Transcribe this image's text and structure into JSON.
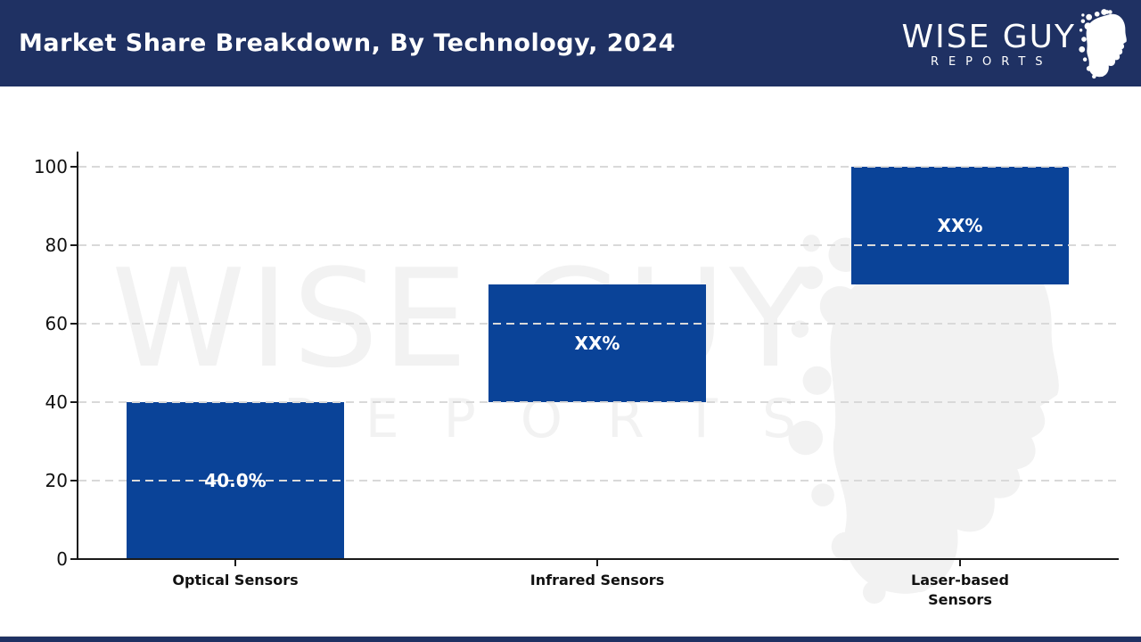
{
  "header": {
    "title": "Market Share Breakdown, By Technology, 2024",
    "logo": {
      "brand": "WISE GUY",
      "sub": "REPORTS"
    }
  },
  "watermark": {
    "brand": "WISE GUY",
    "sub": "REPORTS"
  },
  "chart_data": {
    "type": "bar",
    "subtype": "floating-breakdown-bars",
    "title": "Market Share Breakdown, By Technology, 2024",
    "categories": [
      "Optical Sensors",
      "Infrared Sensors",
      "Laser-based Sensors"
    ],
    "tick_labels": [
      "Optical Sensors",
      "Infrared Sensors",
      "Laser-based\nSensors"
    ],
    "series": [
      {
        "name": "Market Share",
        "segments": [
          {
            "category": "Optical Sensors",
            "start": 0,
            "end": 40,
            "value_label": "40.0%"
          },
          {
            "category": "Infrared Sensors",
            "start": 40,
            "end": 70,
            "value_label": "XX%"
          },
          {
            "category": "Laser-based Sensors",
            "start": 70,
            "end": 100,
            "value_label": "XX%"
          }
        ]
      }
    ],
    "xlabel": "",
    "ylabel": "",
    "ylim": [
      0,
      100
    ],
    "yticks": [
      0,
      20,
      40,
      60,
      80,
      100
    ],
    "grid": "horizontal-dashed",
    "legend": "none",
    "colors": {
      "bar": "#0a4398",
      "value_label": "#ffffff",
      "grid": "#d9d9d9",
      "axis": "#1a1a1a"
    }
  },
  "colors": {
    "header_bg": "#1f3163",
    "footer_bg": "#1f3163",
    "watermark": "#f2f2f2",
    "background": "#ffffff"
  }
}
